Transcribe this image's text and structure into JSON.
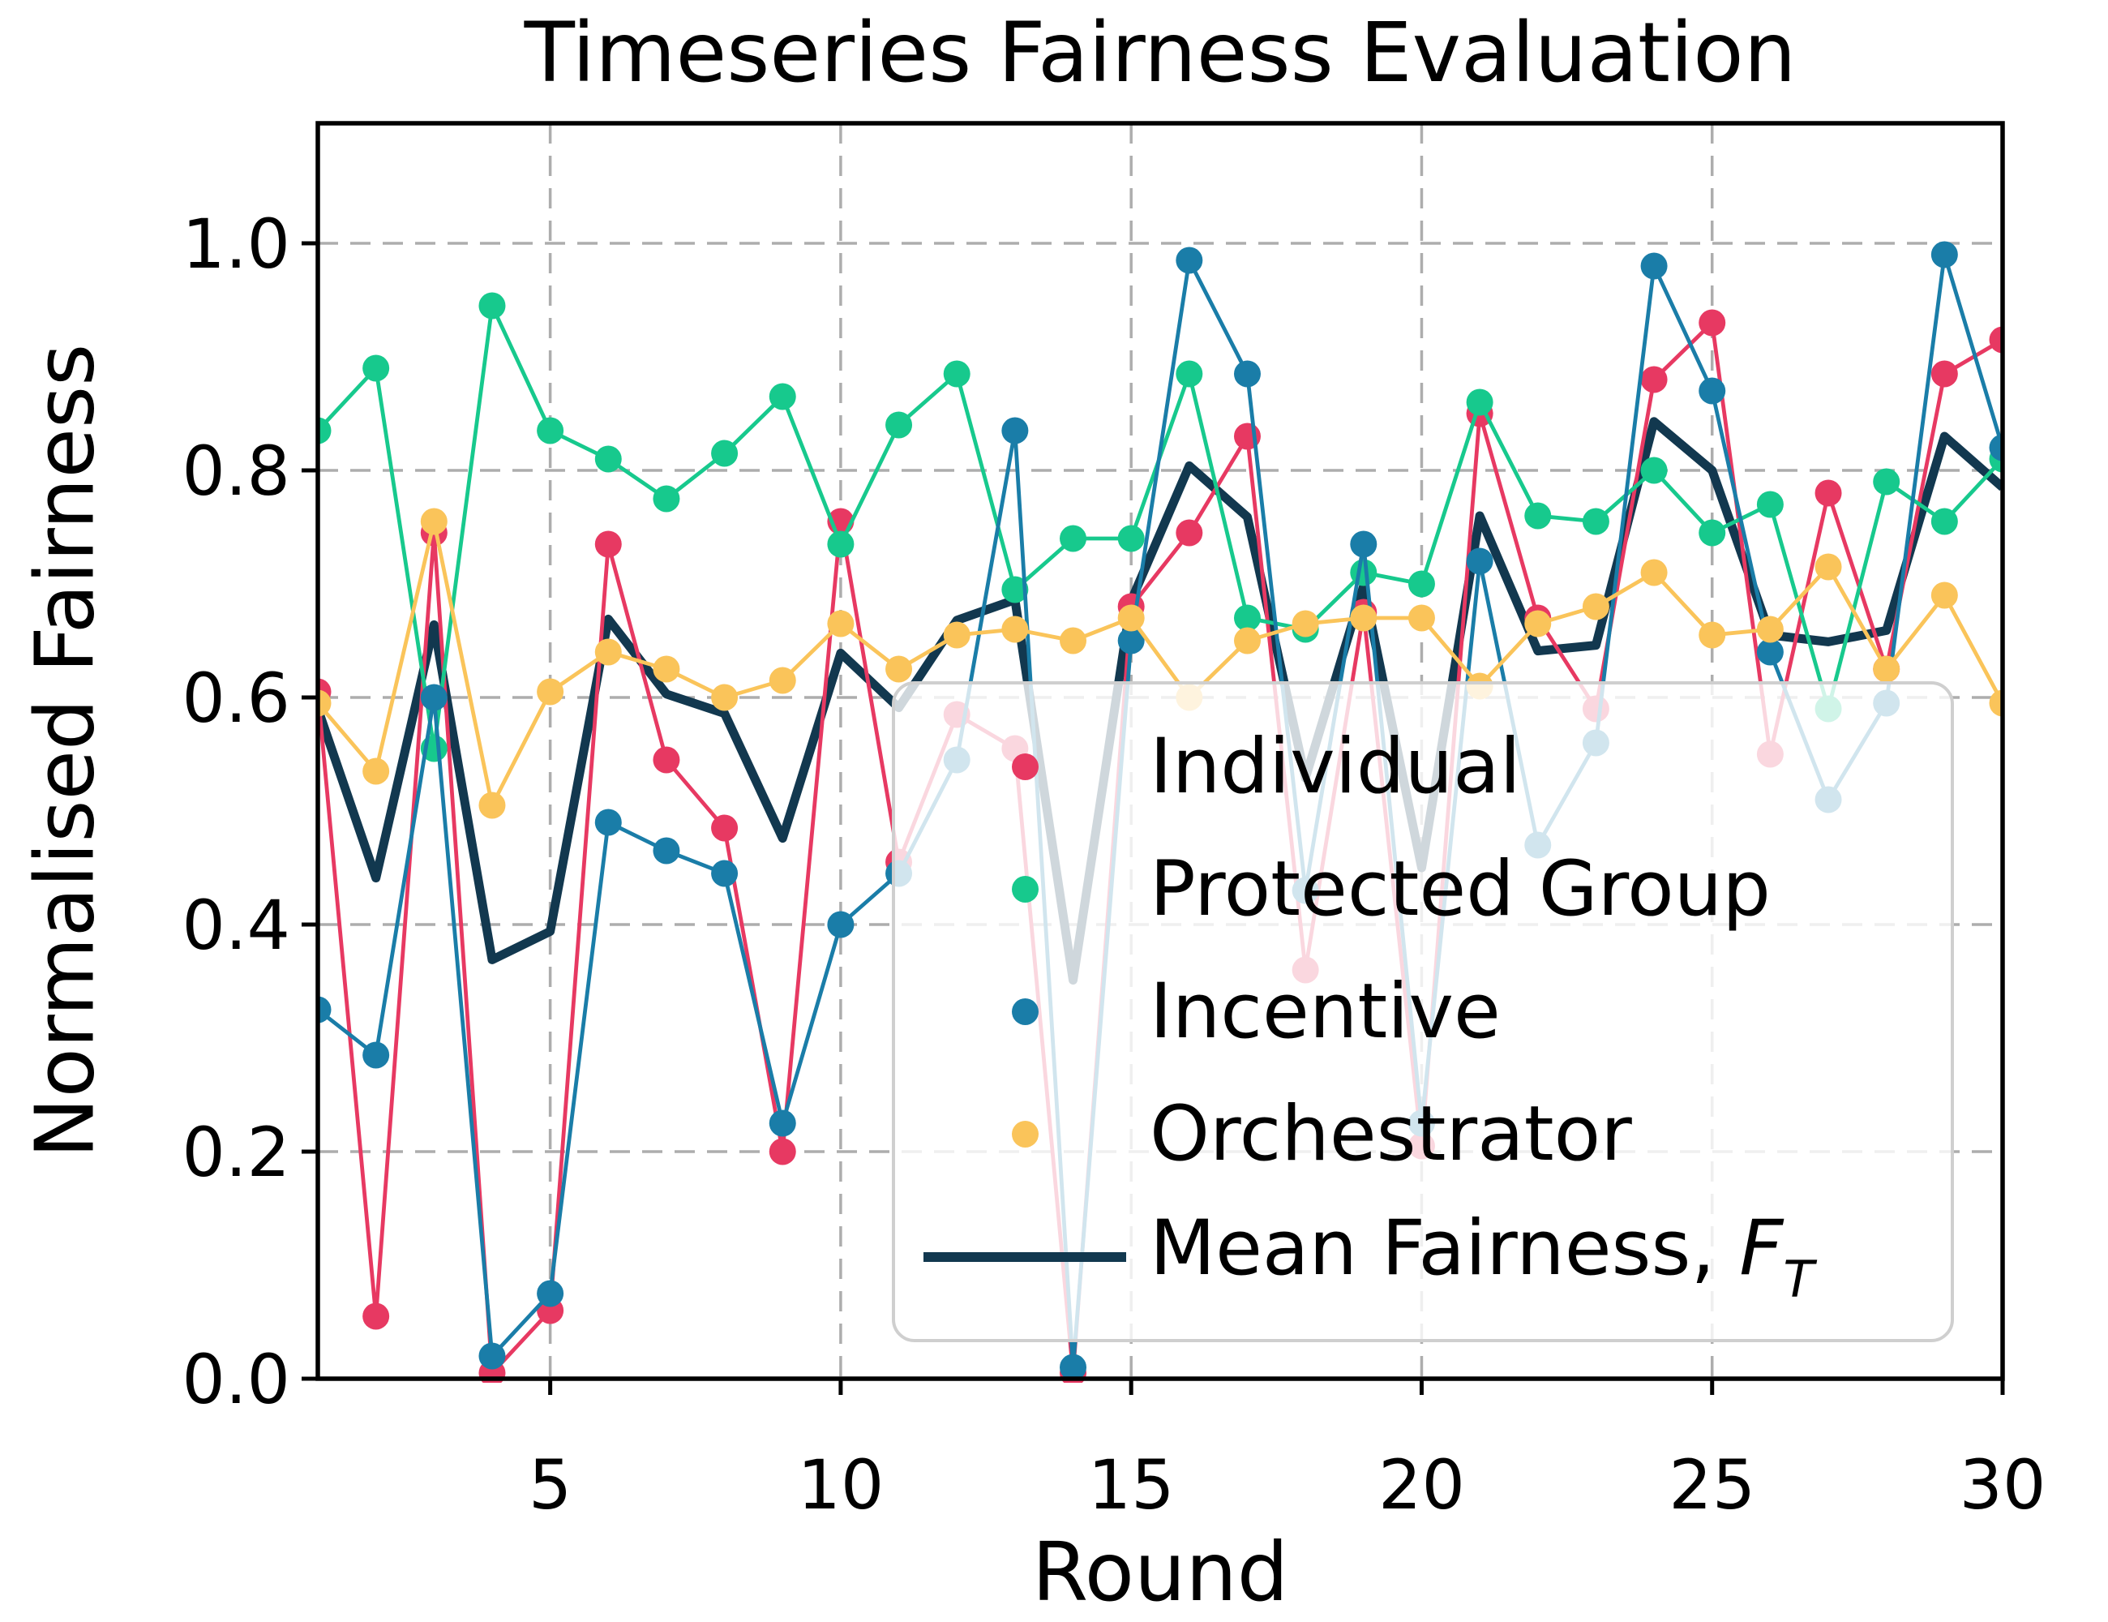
{
  "title": "Timeseries Fairness Evaluation",
  "x_axis_label": "Round",
  "y_axis_label": "Normalised Fairness",
  "x_tick_labels": [
    "5",
    "10",
    "15",
    "20",
    "25",
    "30"
  ],
  "x_tick_values": [
    5,
    10,
    15,
    20,
    25,
    30
  ],
  "y_tick_labels": [
    "0.0",
    "0.2",
    "0.4",
    "0.6",
    "0.8",
    "1.0"
  ],
  "y_tick_values": [
    0.0,
    0.2,
    0.4,
    0.6,
    0.8,
    1.0
  ],
  "colors": {
    "individual": "#E73962",
    "protected_group": "#17C98D",
    "incentive": "#1A7DA8",
    "orchestrator": "#FAC45A",
    "mean": "#12384F",
    "grid": "#ADADAD",
    "spine": "#000000",
    "legend_frame": "#CFCFCF"
  },
  "legend": {
    "items": [
      {
        "key": "individual",
        "label": "Individual",
        "marker": "dot"
      },
      {
        "key": "protected_group",
        "label": "Protected Group",
        "marker": "dot"
      },
      {
        "key": "incentive",
        "label": "Incentive",
        "marker": "dot"
      },
      {
        "key": "orchestrator",
        "label": "Orchestrator",
        "marker": "dot"
      },
      {
        "key": "mean",
        "label_prefix": "Mean Fairness, ",
        "symbol": "F",
        "subscript": "T",
        "marker": "line"
      }
    ]
  },
  "chart_data": {
    "type": "line",
    "title": "Timeseries Fairness Evaluation",
    "xlabel": "Round",
    "ylabel": "Normalised Fairness",
    "x": [
      1,
      2,
      3,
      4,
      5,
      6,
      7,
      8,
      9,
      10,
      11,
      12,
      13,
      14,
      15,
      16,
      17,
      18,
      19,
      20,
      21,
      22,
      23,
      24,
      25,
      26,
      27,
      28,
      29,
      30
    ],
    "xlim": [
      1,
      30
    ],
    "ylim": [
      0.0,
      1.1
    ],
    "grid": true,
    "legend_position": "lower right",
    "series": [
      {
        "name": "Individual",
        "values": [
          0.605,
          0.055,
          0.745,
          0.005,
          0.06,
          0.735,
          0.545,
          0.485,
          0.2,
          0.755,
          0.455,
          0.585,
          0.555,
          0.005,
          0.68,
          0.745,
          0.83,
          0.36,
          0.675,
          0.205,
          0.85,
          0.67,
          0.59,
          0.88,
          0.93,
          0.55,
          0.78,
          0.625,
          0.885,
          0.915
        ]
      },
      {
        "name": "Protected Group",
        "values": [
          0.835,
          0.89,
          0.555,
          0.945,
          0.835,
          0.81,
          0.775,
          0.815,
          0.865,
          0.735,
          0.84,
          0.885,
          0.695,
          0.74,
          0.74,
          0.885,
          0.67,
          0.66,
          0.71,
          0.7,
          0.86,
          0.76,
          0.755,
          0.8,
          0.745,
          0.77,
          0.59,
          0.79,
          0.755,
          0.81
        ]
      },
      {
        "name": "Incentive",
        "values": [
          0.325,
          0.285,
          0.6,
          0.02,
          0.075,
          0.49,
          0.465,
          0.445,
          0.225,
          0.4,
          0.445,
          0.545,
          0.835,
          0.01,
          0.65,
          0.985,
          0.885,
          0.43,
          0.735,
          0.225,
          0.72,
          0.47,
          0.56,
          0.98,
          0.87,
          0.64,
          0.51,
          0.595,
          0.99,
          0.82
        ]
      },
      {
        "name": "Orchestrator",
        "values": [
          0.595,
          0.535,
          0.755,
          0.505,
          0.605,
          0.64,
          0.625,
          0.6,
          0.615,
          0.665,
          0.625,
          0.655,
          0.66,
          0.65,
          0.67,
          0.6,
          0.65,
          0.665,
          0.67,
          0.67,
          0.61,
          0.665,
          0.68,
          0.71,
          0.655,
          0.66,
          0.715,
          0.625,
          0.69,
          0.595
        ]
      },
      {
        "name": "Mean Fairness, F_T",
        "values": [
          0.59,
          0.441,
          0.664,
          0.369,
          0.394,
          0.669,
          0.603,
          0.586,
          0.476,
          0.639,
          0.591,
          0.668,
          0.686,
          0.351,
          0.685,
          0.804,
          0.759,
          0.529,
          0.698,
          0.45,
          0.76,
          0.641,
          0.646,
          0.843,
          0.8,
          0.655,
          0.649,
          0.659,
          0.83,
          0.785
        ]
      }
    ]
  }
}
